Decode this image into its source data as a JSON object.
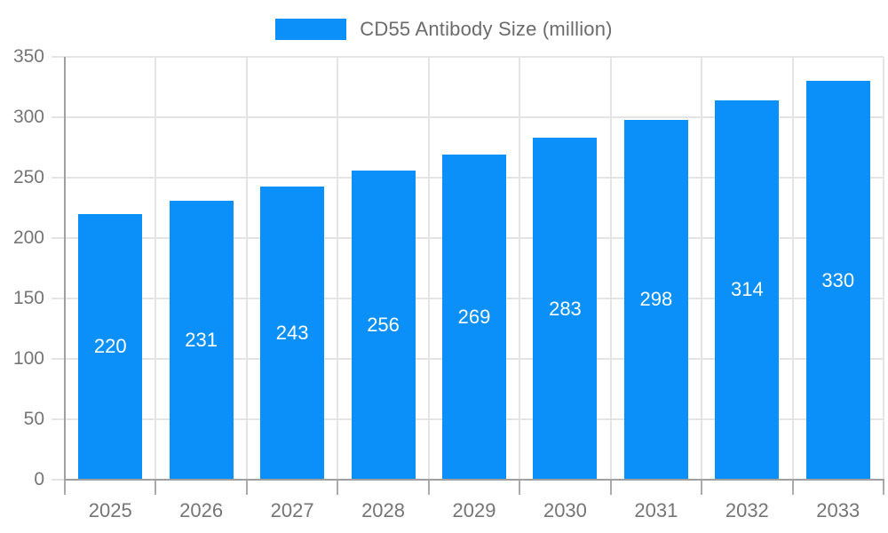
{
  "legend": {
    "label": "CD55 Antibody Size (million)",
    "swatch_color": "#0a90f8"
  },
  "chart_data": {
    "type": "bar",
    "title": "CD55 Antibody Size (million)",
    "categories": [
      "2025",
      "2026",
      "2027",
      "2028",
      "2029",
      "2030",
      "2031",
      "2032",
      "2033"
    ],
    "values": [
      220,
      231,
      243,
      256,
      269,
      283,
      298,
      314,
      330
    ],
    "xlabel": "",
    "ylabel": "",
    "ylim": [
      0,
      350
    ],
    "yticks": [
      0,
      50,
      100,
      150,
      200,
      250,
      300,
      350
    ],
    "grid": "on",
    "legend_position": "top-center",
    "bar_color": "#0a90f8",
    "bar_label_color": "#ffffff",
    "axis_color": "#a0a0a0",
    "gridline_color": "#e4e4e4",
    "tick_label_color": "#757575"
  }
}
